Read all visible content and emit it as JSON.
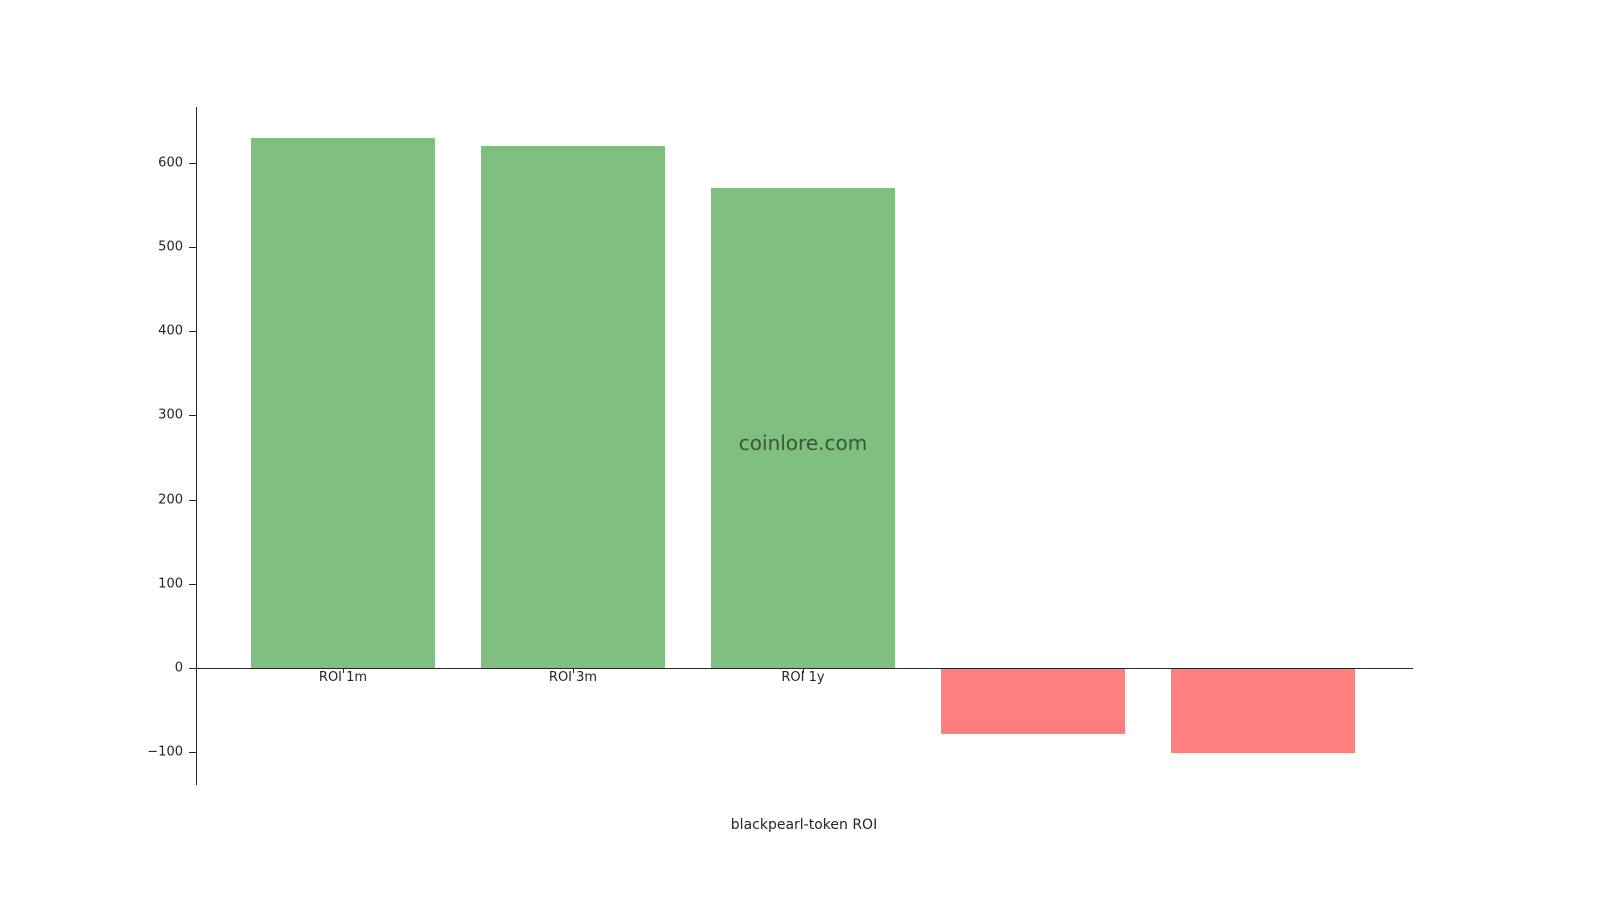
{
  "page": {
    "background_color": "#FFFFFF",
    "text_color": "#262626"
  },
  "chart_data": {
    "type": "bar",
    "title": "blackpearl-token ROI",
    "watermark": "coinlore.com",
    "categories": [
      "ROI 1m",
      "ROI 3m",
      "ROI 1y",
      "",
      ""
    ],
    "values": [
      630,
      620,
      570,
      -77,
      -100
    ],
    "xlabel": "",
    "ylabel": "",
    "ylim": [
      -140,
      665
    ],
    "yticks": [
      {
        "label": "600",
        "value": 600
      },
      {
        "label": "500",
        "value": 500
      },
      {
        "label": "400",
        "value": 400
      },
      {
        "label": "300",
        "value": 300
      },
      {
        "label": "200",
        "value": 200
      },
      {
        "label": "100",
        "value": 100
      },
      {
        "label": "0",
        "value": 0
      },
      {
        "label": "−100",
        "value": -100
      }
    ],
    "grid": false,
    "legend": null,
    "colors": {
      "positive_bar": "#7FBF7F",
      "negative_bar": "#FF7F7F",
      "axis": "#262626"
    }
  }
}
